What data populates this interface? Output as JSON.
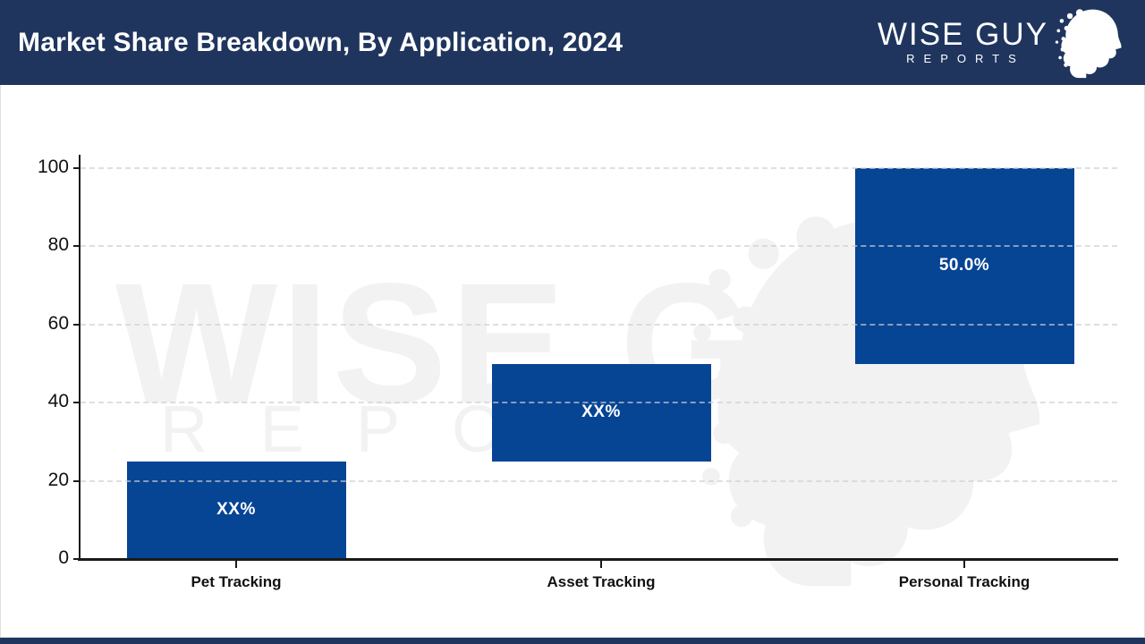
{
  "header": {
    "title": "Market Share Breakdown, By Application, 2024",
    "logo": {
      "primary": "WISE GUY",
      "secondary": "REPORTS"
    }
  },
  "watermark": {
    "primary": "WISE GUY",
    "secondary": "REPORTS"
  },
  "colors": {
    "header_bg": "#1f355e",
    "footer_bg": "#1f355e",
    "bar": "#064494",
    "bar_label": "#ffffff",
    "axis": "#1a1a1a",
    "gridline": "#cfcfcf",
    "watermark": "#f2f2f3",
    "title_text": "#ffffff"
  },
  "chart_data": {
    "type": "bar",
    "variant": "waterfall",
    "title": "Market Share Breakdown, By Application, 2024",
    "categories": [
      "Pet Tracking",
      "Asset Tracking",
      "Personal Tracking"
    ],
    "bars": [
      {
        "category": "Pet Tracking",
        "start": 0,
        "end": 25,
        "value": 25,
        "label": "XX%"
      },
      {
        "category": "Asset Tracking",
        "start": 25,
        "end": 50,
        "value": 25,
        "label": "XX%"
      },
      {
        "category": "Personal Tracking",
        "start": 50,
        "end": 100,
        "value": 50,
        "label": "50.0%"
      }
    ],
    "xlabel": "",
    "ylabel": "",
    "ylim": [
      0,
      100
    ],
    "yticks": [
      0,
      20,
      40,
      60,
      80,
      100
    ],
    "grid": "horizontal-dashed",
    "legend": null,
    "bar_label_position": "center"
  }
}
